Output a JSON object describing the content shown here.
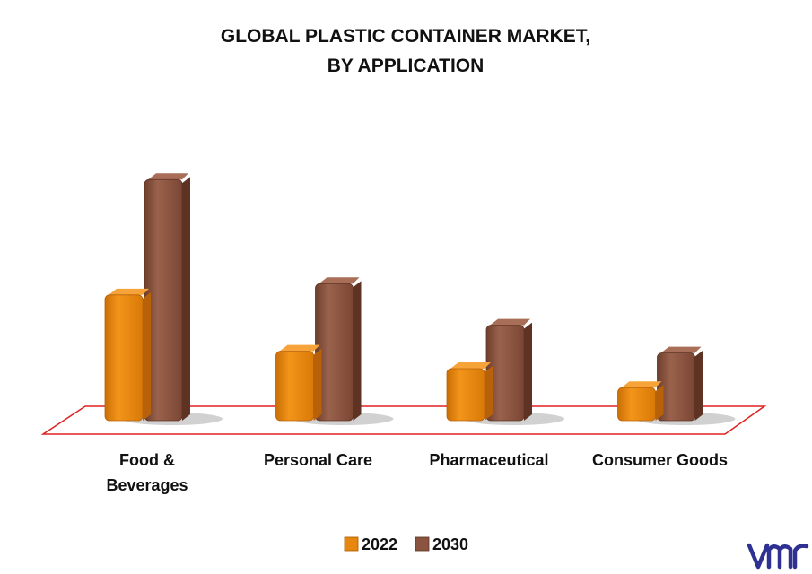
{
  "chart_data": {
    "type": "bar",
    "title": "GLOBAL PLASTIC CONTAINER MARKET,",
    "subtitle": "BY APPLICATION",
    "categories": [
      "Food &\nBeverages",
      "Personal Care",
      "Pharmaceutical",
      "Consumer Goods"
    ],
    "series": [
      {
        "name": "2022",
        "values": [
          145,
          80,
          60,
          38
        ],
        "color": "#E8870F"
      },
      {
        "name": "2030",
        "values": [
          278,
          158,
          110,
          78
        ],
        "color": "#8B5440"
      }
    ],
    "ylim": [
      0,
      300
    ],
    "grid": false,
    "legend_position": "bottom-center",
    "floor_outline_color": "#E02020"
  },
  "logo": {
    "text": "vmr",
    "color": "#2E3192"
  }
}
